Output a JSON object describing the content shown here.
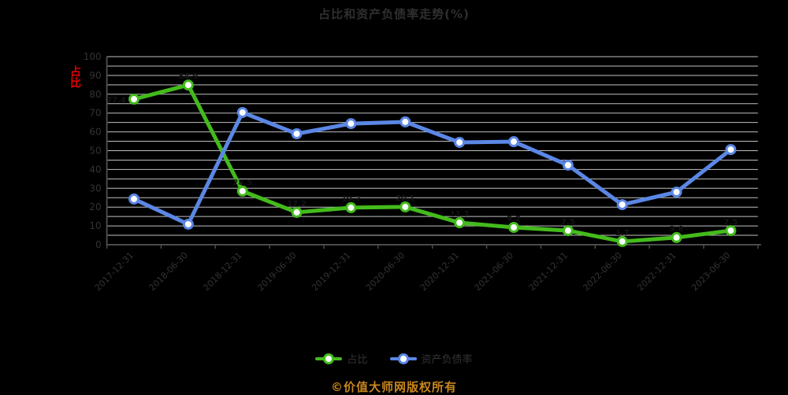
{
  "title": "占比和资产负债率走势(%)",
  "y_axis": {
    "unit_label": "占比",
    "unit_label_color": "#e60000",
    "tick_labels": [
      "100",
      "90",
      "80",
      "70",
      "60",
      "50",
      "40",
      "30",
      "20",
      "10",
      "0"
    ]
  },
  "watermark": "©价值大师网版权所有",
  "chart_data": {
    "type": "line",
    "title": "占比和资产负债率走势(%)",
    "xlabel": "",
    "ylabel": "%",
    "ylim": [
      0,
      100
    ],
    "grid": true,
    "grid_step": 5,
    "y_tick_step": 10,
    "legend_position": "bottom",
    "x": [
      "2017-12-31",
      "2018-06-30",
      "2018-12-31",
      "2019-06-30",
      "2019-12-31",
      "2020-06-30",
      "2020-12-31",
      "2021-06-30",
      "2021-12-31",
      "2022-06-30",
      "2022-12-31",
      "2023-06-30"
    ],
    "series": [
      {
        "name": "占比",
        "color": "#43bb1c",
        "values": [
          77.4,
          84.9,
          28.5,
          17.2,
          19.7,
          20.1,
          11.7,
          9.2,
          7.5,
          1.7,
          3.8,
          7.5
        ],
        "data_labels": [
          "77.4",
          "84.9",
          "28.5",
          "17.2",
          "19.7",
          "20.1",
          "11.7",
          "9.2",
          "7.5",
          "1.7",
          "3.8",
          "7.5"
        ]
      },
      {
        "name": "资产负债率",
        "color": "#5b87e5",
        "values": [
          24.3,
          10.9,
          70.3,
          59.0,
          64.4,
          65.3,
          54.4,
          54.8,
          42.3,
          21.3,
          28.0,
          50.6
        ],
        "data_labels": null
      }
    ],
    "colors": {
      "background": "#000000",
      "grid_line": "#bfbfbf",
      "axis_line": "#4a4a4a",
      "tick_label": "#333333",
      "title_text": "#2f2f2f",
      "data_label": "#141414",
      "watermark": "#c8871c"
    }
  }
}
